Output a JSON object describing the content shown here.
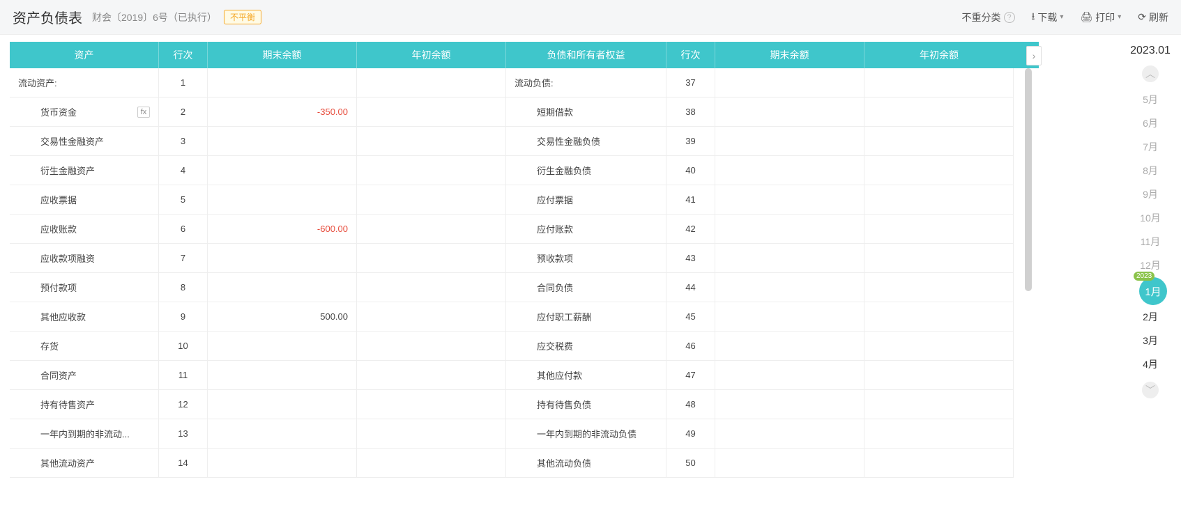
{
  "header": {
    "title": "资产负债表",
    "subtitle": "财会〔2019〕6号（已执行）",
    "badge": "不平衡"
  },
  "toolbar": {
    "noclassify": "不重分类",
    "download": "下载",
    "print": "打印",
    "refresh": "刷新"
  },
  "columns": {
    "asset": "资产",
    "rownum": "行次",
    "end_balance": "期末余额",
    "begin_balance": "年初余额",
    "liab": "负债和所有者权益",
    "rownum2": "行次",
    "end_balance2": "期末余额",
    "begin_balance2": "年初余额"
  },
  "rows": [
    {
      "a": "流动资产:",
      "ai": 0,
      "an": "1",
      "ae": "",
      "ab": "",
      "has_fx": false,
      "l": "流动负债:",
      "li": 0,
      "ln": "37",
      "le": "",
      "lb": ""
    },
    {
      "a": "货币资金",
      "ai": 2,
      "an": "2",
      "ae": "-350.00",
      "ae_neg": true,
      "ab": "",
      "has_fx": true,
      "l": "短期借款",
      "li": 2,
      "ln": "38",
      "le": "",
      "lb": ""
    },
    {
      "a": "交易性金融资产",
      "ai": 2,
      "an": "3",
      "ae": "",
      "ab": "",
      "l": "交易性金融负债",
      "li": 2,
      "ln": "39",
      "le": "",
      "lb": ""
    },
    {
      "a": "衍生金融资产",
      "ai": 2,
      "an": "4",
      "ae": "",
      "ab": "",
      "l": "衍生金融负债",
      "li": 2,
      "ln": "40",
      "le": "",
      "lb": ""
    },
    {
      "a": "应收票据",
      "ai": 2,
      "an": "5",
      "ae": "",
      "ab": "",
      "l": "应付票据",
      "li": 2,
      "ln": "41",
      "le": "",
      "lb": ""
    },
    {
      "a": "应收账款",
      "ai": 2,
      "an": "6",
      "ae": "-600.00",
      "ae_neg": true,
      "ab": "",
      "l": "应付账款",
      "li": 2,
      "ln": "42",
      "le": "",
      "lb": ""
    },
    {
      "a": "应收款项融资",
      "ai": 2,
      "an": "7",
      "ae": "",
      "ab": "",
      "l": "预收款项",
      "li": 2,
      "ln": "43",
      "le": "",
      "lb": ""
    },
    {
      "a": "预付款项",
      "ai": 2,
      "an": "8",
      "ae": "",
      "ab": "",
      "l": "合同负债",
      "li": 2,
      "ln": "44",
      "le": "",
      "lb": ""
    },
    {
      "a": "其他应收款",
      "ai": 2,
      "an": "9",
      "ae": "500.00",
      "ab": "",
      "l": "应付职工薪酬",
      "li": 2,
      "ln": "45",
      "le": "",
      "lb": ""
    },
    {
      "a": "存货",
      "ai": 2,
      "an": "10",
      "ae": "",
      "ab": "",
      "l": "应交税费",
      "li": 2,
      "ln": "46",
      "le": "",
      "lb": ""
    },
    {
      "a": "合同资产",
      "ai": 2,
      "an": "11",
      "ae": "",
      "ab": "",
      "l": "其他应付款",
      "li": 2,
      "ln": "47",
      "le": "",
      "lb": ""
    },
    {
      "a": "持有待售资产",
      "ai": 2,
      "an": "12",
      "ae": "",
      "ab": "",
      "l": "持有待售负债",
      "li": 2,
      "ln": "48",
      "le": "",
      "lb": ""
    },
    {
      "a": "一年内到期的非流动...",
      "ai": 2,
      "an": "13",
      "ae": "",
      "ab": "",
      "l": "一年内到期的非流动负债",
      "li": 2,
      "ln": "49",
      "le": "",
      "lb": ""
    },
    {
      "a": "其他流动资产",
      "ai": 2,
      "an": "14",
      "ae": "",
      "ab": "",
      "l": "其他流动负债",
      "li": 2,
      "ln": "50",
      "le": "",
      "lb": ""
    }
  ],
  "period": {
    "current": "2023.01",
    "year_tag": "2023",
    "months_disabled": [
      "5月",
      "6月",
      "7月",
      "8月",
      "9月",
      "10月",
      "11月",
      "12月"
    ],
    "active": "1月",
    "months_enabled": [
      "2月",
      "3月",
      "4月"
    ]
  }
}
